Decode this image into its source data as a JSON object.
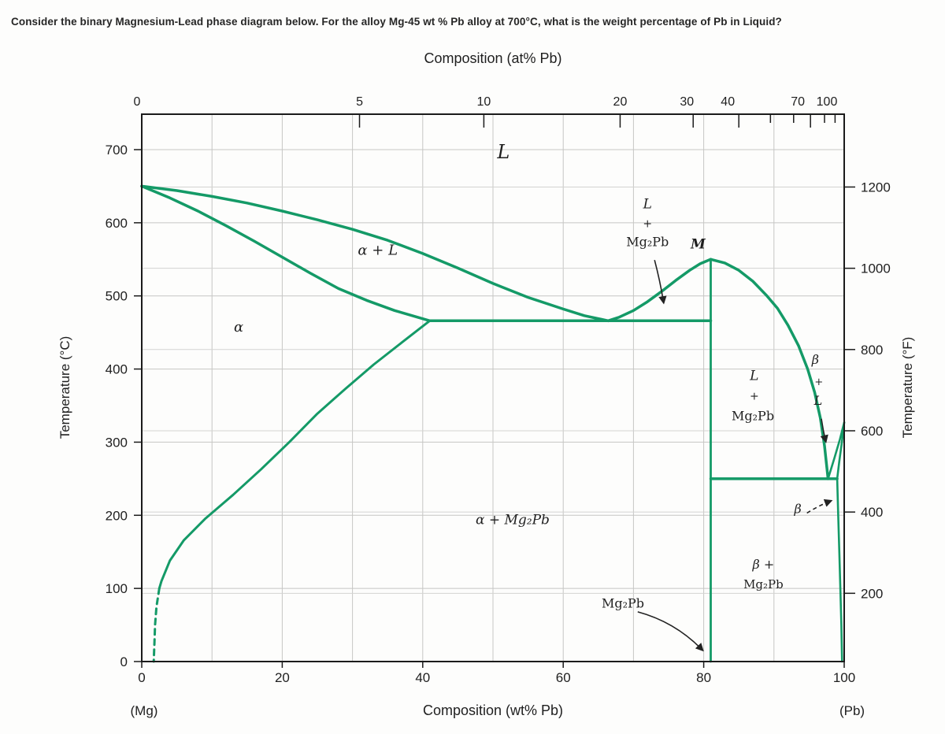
{
  "question": "Consider the binary Magnesium-Lead phase diagram below. For the alloy Mg-45 wt % Pb alloy at 700°C, what is the weight percentage of Pb in Liquid?",
  "chart_data": {
    "type": "line",
    "title": "Binary Magnesium-Lead phase diagram",
    "title_top": "Composition (at% Pb)",
    "xlabel": "Composition (wt% Pb)",
    "ylabel_left": "Temperature (°C)",
    "ylabel_right": "Temperature (°F)",
    "end_label_left": "(Mg)",
    "end_label_right": "(Pb)",
    "xlim": [
      0,
      100
    ],
    "ylim_C": [
      0,
      750
    ],
    "colors": {
      "curve": "#149a67",
      "grid": "#c6c6c4",
      "frame": "#1b1b1b",
      "text": "#1f1f1f"
    },
    "grid": {
      "wt": [
        10,
        20,
        30,
        40,
        50,
        60,
        70,
        80,
        90
      ],
      "temps_C": [
        100,
        200,
        300,
        400,
        500,
        600,
        700
      ],
      "temps_F": [
        200,
        400,
        600,
        800,
        1000,
        1200
      ]
    },
    "ticks_bottom_wt": [
      0,
      20,
      40,
      60,
      80,
      100
    ],
    "ticks_left_C": [
      0,
      100,
      200,
      300,
      400,
      500,
      600,
      700
    ],
    "ticks_right_F": [
      200,
      400,
      600,
      800,
      1000,
      1200
    ],
    "ticks_top": [
      {
        "label": "0",
        "wt": 0,
        "major": true,
        "dx": -6
      },
      {
        "label": "5",
        "wt": 31.0,
        "major": true,
        "dx": 0
      },
      {
        "label": "10",
        "wt": 48.7,
        "major": true,
        "dx": 0
      },
      {
        "label": "20",
        "wt": 68.1,
        "major": true,
        "dx": 0
      },
      {
        "label": "30",
        "wt": 78.5,
        "major": true,
        "dx": -8
      },
      {
        "label": "40",
        "wt": 85.0,
        "major": true,
        "dx": -14
      },
      {
        "label": "",
        "wt": 89.5,
        "major": false,
        "dx": 0
      },
      {
        "label": "",
        "wt": 92.8,
        "major": false,
        "dx": 0
      },
      {
        "label": "70",
        "wt": 95.2,
        "major": true,
        "dx": -16
      },
      {
        "label": "",
        "wt": 97.2,
        "major": false,
        "dx": 0
      },
      {
        "label": "",
        "wt": 98.7,
        "major": false,
        "dx": 0
      },
      {
        "label": "100",
        "wt": 100,
        "major": true,
        "dx": -22
      }
    ],
    "key_points": {
      "mg_melting_C": 650,
      "eutectic_1": {
        "wt_pct_pb": 66.4,
        "temp_C": 466
      },
      "max_alpha_solubility_wt_pct_pb": 41,
      "mg2pb_compound_wt_pct_pb": 81,
      "mg2pb_melting_C": 550,
      "eutectic_2": {
        "wt_pct_pb": 97.7,
        "temp_C": 250
      },
      "pb_melting_C": 327
    },
    "curves": [
      {
        "id": "liquidus-mg",
        "w": 3.5,
        "points": [
          [
            0,
            650
          ],
          [
            5,
            644
          ],
          [
            10,
            636
          ],
          [
            15,
            627
          ],
          [
            20,
            616
          ],
          [
            25,
            604
          ],
          [
            30,
            591
          ],
          [
            35,
            576
          ],
          [
            40,
            558
          ],
          [
            45,
            538
          ],
          [
            50,
            517
          ],
          [
            55,
            498
          ],
          [
            60,
            482
          ],
          [
            63,
            473
          ],
          [
            66.4,
            466
          ]
        ]
      },
      {
        "id": "solidus-mg",
        "w": 3.5,
        "points": [
          [
            0,
            650
          ],
          [
            4,
            634
          ],
          [
            8,
            616
          ],
          [
            12,
            596
          ],
          [
            16,
            575
          ],
          [
            20,
            553
          ],
          [
            24,
            531
          ],
          [
            28,
            510
          ],
          [
            32,
            494
          ],
          [
            36,
            480
          ],
          [
            41,
            466
          ]
        ]
      },
      {
        "id": "solvus-alpha",
        "w": 3,
        "points": [
          [
            41,
            466
          ],
          [
            37,
            436
          ],
          [
            33,
            406
          ],
          [
            29,
            373
          ],
          [
            25,
            339
          ],
          [
            21,
            300
          ],
          [
            17,
            263
          ],
          [
            13,
            228
          ],
          [
            9,
            195
          ],
          [
            6,
            166
          ],
          [
            4,
            138
          ],
          [
            2.8,
            110
          ],
          [
            2.5,
            100
          ]
        ]
      },
      {
        "id": "solvus-alpha-low",
        "w": 3,
        "dashed": true,
        "points": [
          [
            2.5,
            100
          ],
          [
            2.1,
            75
          ],
          [
            1.9,
            50
          ],
          [
            1.8,
            25
          ],
          [
            1.7,
            0
          ]
        ]
      },
      {
        "id": "eutectic-line-1",
        "w": 3.5,
        "points": [
          [
            41,
            466
          ],
          [
            81,
            466
          ]
        ]
      },
      {
        "id": "liquidus-mg2pb-left",
        "w": 3.5,
        "points": [
          [
            66.4,
            466
          ],
          [
            68,
            471
          ],
          [
            70,
            480
          ],
          [
            72,
            492
          ],
          [
            74,
            506
          ],
          [
            76,
            521
          ],
          [
            78,
            535
          ],
          [
            79.5,
            544
          ],
          [
            81,
            550
          ]
        ]
      },
      {
        "id": "liquidus-mg2pb-right",
        "w": 3.5,
        "points": [
          [
            81,
            550
          ],
          [
            83,
            545
          ],
          [
            85,
            535
          ],
          [
            87,
            520
          ],
          [
            89,
            500
          ],
          [
            90.5,
            483
          ],
          [
            92,
            460
          ],
          [
            93.5,
            432
          ],
          [
            94.8,
            400
          ],
          [
            95.8,
            368
          ],
          [
            96.6,
            333
          ],
          [
            97.2,
            295
          ],
          [
            97.7,
            250
          ]
        ]
      },
      {
        "id": "mg2pb-vertical",
        "w": 2.8,
        "points": [
          [
            81,
            0
          ],
          [
            81,
            550
          ]
        ]
      },
      {
        "id": "eutectic-line-2",
        "w": 3.5,
        "points": [
          [
            81,
            250
          ],
          [
            99,
            250
          ]
        ]
      },
      {
        "id": "liquidus-pb",
        "w": 2.6,
        "points": [
          [
            100,
            327
          ],
          [
            99.4,
            304
          ],
          [
            98.6,
            278
          ],
          [
            97.7,
            250
          ]
        ]
      },
      {
        "id": "solidus-pb",
        "w": 2.6,
        "points": [
          [
            100,
            327
          ],
          [
            99.7,
            302
          ],
          [
            99.3,
            274
          ],
          [
            99,
            250
          ]
        ]
      },
      {
        "id": "solvus-beta",
        "w": 2.6,
        "points": [
          [
            99,
            250
          ],
          [
            99.15,
            200
          ],
          [
            99.3,
            150
          ],
          [
            99.45,
            100
          ],
          [
            99.6,
            50
          ],
          [
            99.7,
            0
          ]
        ]
      }
    ],
    "region_labels": [
      {
        "text": "L",
        "wt": 51.5,
        "t": 688,
        "size": 24,
        "italic": true
      },
      {
        "text": "α + L",
        "wt": 33.6,
        "t": 556,
        "size": 18,
        "italic": true
      },
      {
        "text": "α",
        "wt": 13.8,
        "t": 451,
        "size": 18,
        "italic": true
      },
      {
        "text": "L",
        "wt": 72,
        "t": 620,
        "size": 17,
        "italic": true
      },
      {
        "text": "+",
        "wt": 72,
        "t": 594,
        "size": 14,
        "italic": false
      },
      {
        "text": "Mg₂Pb",
        "wt": 72,
        "t": 568,
        "size": 16,
        "italic": false
      },
      {
        "text": "M",
        "wt": 79.2,
        "t": 565,
        "size": 17,
        "italic": true,
        "bold": true
      },
      {
        "text": "L",
        "wt": 87.2,
        "t": 385,
        "size": 17,
        "italic": true
      },
      {
        "text": "+",
        "wt": 87.2,
        "t": 358,
        "size": 14,
        "italic": false
      },
      {
        "text": "Mg₂Pb",
        "wt": 87,
        "t": 330,
        "size": 16,
        "italic": false
      },
      {
        "text": "β",
        "wt": 95.9,
        "t": 407,
        "size": 16,
        "italic": true
      },
      {
        "text": "+",
        "wt": 96.4,
        "t": 378,
        "size": 13,
        "italic": false
      },
      {
        "text": "L",
        "wt": 96.3,
        "t": 351,
        "size": 16,
        "italic": true
      },
      {
        "text": "β",
        "wt": 93.4,
        "t": 203,
        "size": 16,
        "italic": true
      },
      {
        "text": "β +",
        "wt": 88.5,
        "t": 127,
        "size": 16,
        "italic": true
      },
      {
        "text": "Mg₂Pb",
        "wt": 88.5,
        "t": 100,
        "size": 15,
        "italic": false
      },
      {
        "text": "Mg₂Pb",
        "wt": 68.5,
        "t": 74,
        "size": 16,
        "italic": false
      },
      {
        "text": "α + Mg₂Pb",
        "wt": 52.8,
        "t": 188,
        "size": 17,
        "italic": true
      }
    ],
    "arrows": [
      {
        "id": "arrow-l-mg2pb-upper",
        "from": [
          73,
          549
        ],
        "ctrl": [
          73.8,
          520
        ],
        "to": [
          74.3,
          490
        ],
        "dashed": false
      },
      {
        "id": "arrow-mg2pb-bottom",
        "from": [
          70.6,
          68
        ],
        "ctrl": [
          76,
          54
        ],
        "to": [
          79.9,
          15
        ],
        "dashed": false
      },
      {
        "id": "arrow-beta-plus-l",
        "from": [
          96.75,
          332
        ],
        "ctrl": [
          97,
          316
        ],
        "to": [
          97.4,
          300
        ],
        "dashed": false
      },
      {
        "id": "arrow-beta-lower",
        "from": [
          94.7,
          203
        ],
        "ctrl": [
          96.5,
          214
        ],
        "to": [
          98.2,
          220
        ],
        "dashed": true
      }
    ]
  }
}
